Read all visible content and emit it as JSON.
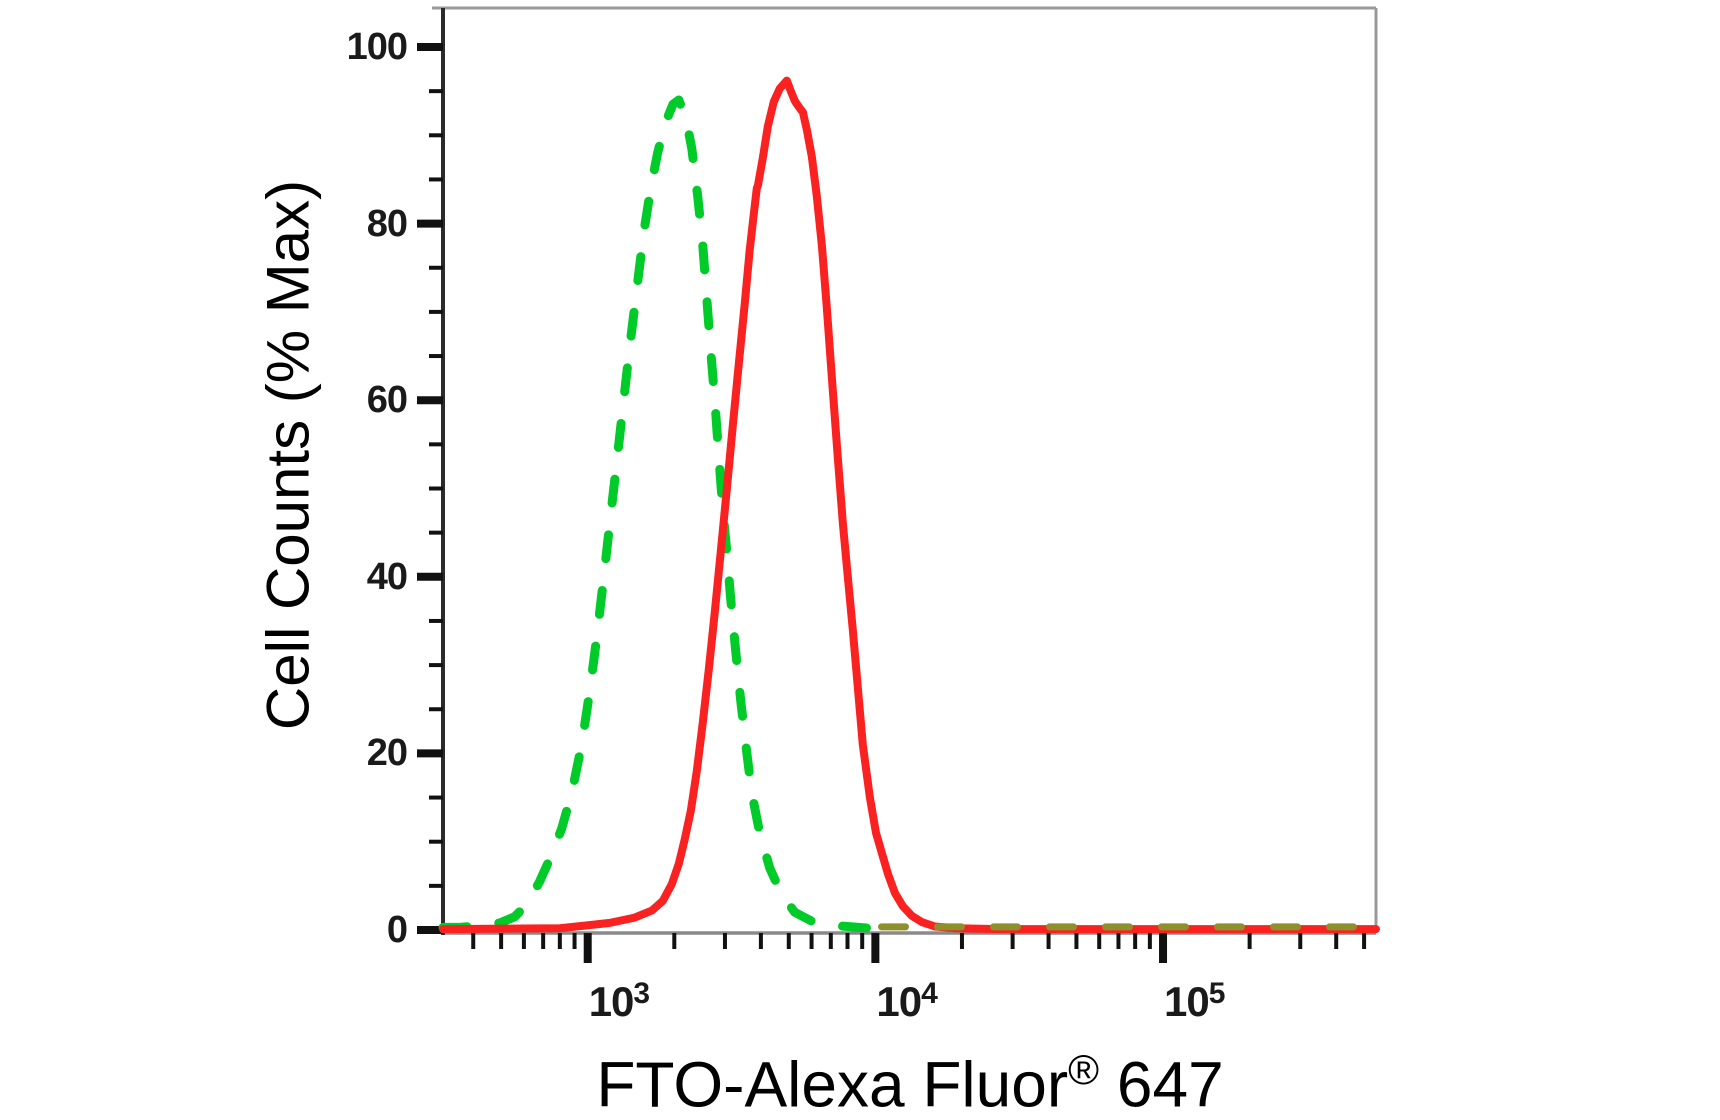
{
  "chart_data": {
    "type": "line",
    "title": "",
    "xlabel": "FTO-Alexa Fluor® 647",
    "xlabel_parts": {
      "prefix": "FTO-Alexa Fluor",
      "registered": "®",
      "suffix": " 647"
    },
    "ylabel": "Cell Counts (% Max)",
    "x_scale": "log",
    "x_range": [
      314,
      550000
    ],
    "ylim": [
      0,
      105
    ],
    "grid": false,
    "legend": "none",
    "y_major_ticks": [
      0,
      20,
      40,
      60,
      80,
      100
    ],
    "y_tick_labels": [
      "0",
      "20",
      "40",
      "60",
      "80",
      "100"
    ],
    "y_minor_step": 5,
    "x_major_ticks": [
      1000,
      10000,
      100000
    ],
    "x_tick_labels": [
      {
        "base": "10",
        "exp": "3"
      },
      {
        "base": "10",
        "exp": "4"
      },
      {
        "base": "10",
        "exp": "5"
      }
    ],
    "x_minor_multipliers": [
      2,
      3,
      4,
      5,
      6,
      7,
      8,
      9
    ],
    "series": [
      {
        "name": "green-dashed-histogram",
        "style": "dashed",
        "color": "#00cb28",
        "stroke_width": 9,
        "dash": "24 32",
        "points": [
          [
            314,
            0.3
          ],
          [
            360,
            0.3
          ],
          [
            420,
            0.5
          ],
          [
            495,
            0.8
          ],
          [
            557,
            1.5
          ],
          [
            618,
            3
          ],
          [
            681,
            5.5
          ],
          [
            749,
            8.5
          ],
          [
            812,
            11.5
          ],
          [
            880,
            15.5
          ],
          [
            953,
            21
          ],
          [
            1016,
            27
          ],
          [
            1074,
            33
          ],
          [
            1137,
            40
          ],
          [
            1202,
            47
          ],
          [
            1262,
            53
          ],
          [
            1334,
            60
          ],
          [
            1400,
            66
          ],
          [
            1480,
            72.5
          ],
          [
            1567,
            79
          ],
          [
            1656,
            84
          ],
          [
            1750,
            88
          ],
          [
            1867,
            91.5
          ],
          [
            1977,
            93.5
          ],
          [
            2074,
            94
          ],
          [
            2193,
            92
          ],
          [
            2300,
            88.5
          ],
          [
            2414,
            83
          ],
          [
            2512,
            77.5
          ],
          [
            2594,
            71.5
          ],
          [
            2679,
            65.5
          ],
          [
            2766,
            60
          ],
          [
            2857,
            53.5
          ],
          [
            2950,
            47.5
          ],
          [
            3043,
            43
          ],
          [
            3142,
            37.5
          ],
          [
            3271,
            31.5
          ],
          [
            3404,
            26
          ],
          [
            3545,
            21
          ],
          [
            3718,
            15.5
          ],
          [
            3963,
            11
          ],
          [
            4295,
            7
          ],
          [
            4729,
            4
          ],
          [
            5248,
            2
          ],
          [
            6012,
            1
          ],
          [
            7228,
            0.5
          ],
          [
            9572,
            0.2
          ]
        ]
      },
      {
        "name": "red-solid-histogram",
        "style": "solid",
        "color": "#fa2121",
        "stroke_width": 8,
        "dash": null,
        "points": [
          [
            314,
            0.1
          ],
          [
            800,
            0.2
          ],
          [
            977,
            0.5
          ],
          [
            1193,
            0.8
          ],
          [
            1457,
            1.4
          ],
          [
            1670,
            2.2
          ],
          [
            1824,
            3.3
          ],
          [
            1960,
            5.2
          ],
          [
            2074,
            7.5
          ],
          [
            2175,
            10.3
          ],
          [
            2282,
            13.5
          ],
          [
            2394,
            18
          ],
          [
            2512,
            23.5
          ],
          [
            2636,
            29.5
          ],
          [
            2766,
            36
          ],
          [
            2903,
            43
          ],
          [
            3046,
            50
          ],
          [
            3192,
            57
          ],
          [
            3350,
            64
          ],
          [
            3516,
            71
          ],
          [
            3657,
            77
          ],
          [
            3777,
            81
          ],
          [
            3872,
            84
          ],
          [
            3906,
            84.3
          ],
          [
            4064,
            87.5
          ],
          [
            4227,
            91
          ],
          [
            4436,
            93.8
          ],
          [
            4655,
            95.3
          ],
          [
            4920,
            96.2
          ],
          [
            5081,
            95
          ],
          [
            5248,
            93.9
          ],
          [
            5420,
            93.2
          ],
          [
            5598,
            92.6
          ],
          [
            5781,
            90.6
          ],
          [
            6012,
            87.6
          ],
          [
            6252,
            83.2
          ],
          [
            6516,
            77.5
          ],
          [
            6780,
            70.5
          ],
          [
            7059,
            62.5
          ],
          [
            7405,
            53.5
          ],
          [
            7709,
            46
          ],
          [
            8022,
            40
          ],
          [
            8345,
            34
          ],
          [
            8690,
            27.5
          ],
          [
            9046,
            21
          ],
          [
            9572,
            15
          ],
          [
            10050,
            11
          ],
          [
            10540,
            8.7
          ],
          [
            11070,
            6.3
          ],
          [
            11690,
            4.2
          ],
          [
            12460,
            2.7
          ],
          [
            13400,
            1.6
          ],
          [
            14520,
            0.9
          ],
          [
            16100,
            0.4
          ],
          [
            18900,
            0.2
          ],
          [
            27100,
            0.1
          ],
          [
            550000,
            0.1
          ]
        ]
      },
      {
        "name": "baseline-overlap-dashes",
        "style": "dashed",
        "color": "#8f8f2b",
        "stroke_width": 7,
        "dash": "24 32",
        "points": [
          [
            10500,
            0.35
          ],
          [
            550000,
            0.35
          ]
        ]
      }
    ]
  }
}
